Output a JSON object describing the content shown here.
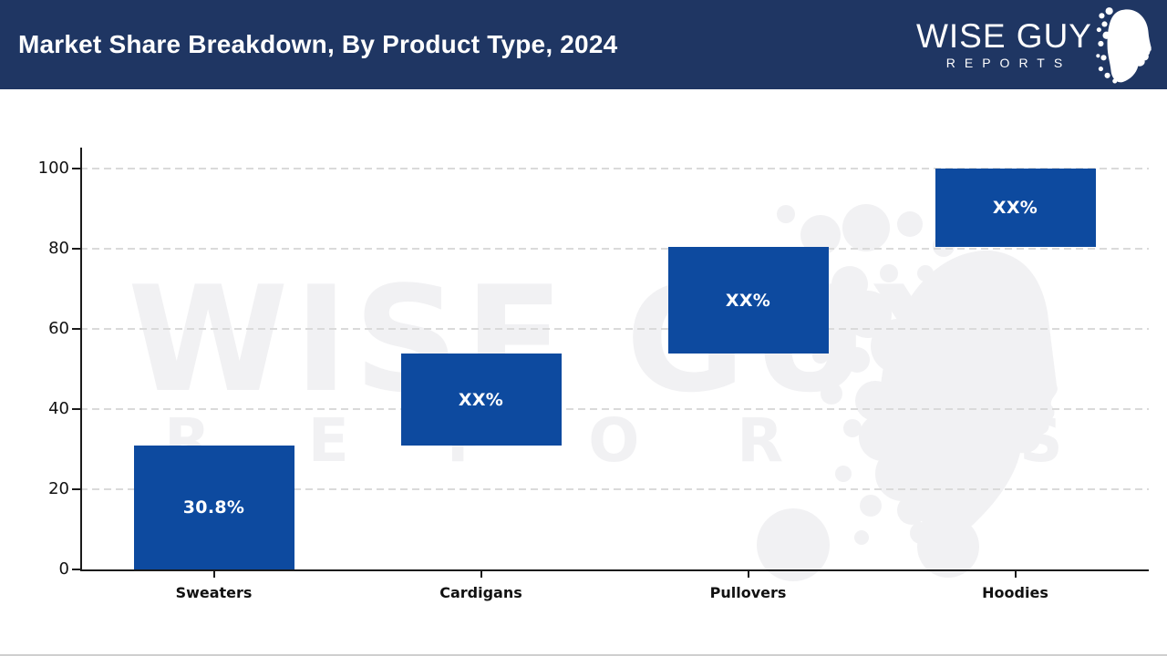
{
  "header": {
    "title": "Market Share Breakdown, By Product Type, 2024",
    "logo": {
      "line1": "WISE GUY",
      "line2": "REPORTS"
    }
  },
  "watermark": {
    "line1": "WISE GUY",
    "line2": "R E P O R T S"
  },
  "chart_data": {
    "type": "bar",
    "subtype": "waterfall",
    "title": "Market Share Breakdown, By Product Type, 2024",
    "categories": [
      "Sweaters",
      "Cardigans",
      "Pullovers",
      "Hoodies"
    ],
    "segments": [
      {
        "category": "Sweaters",
        "start": 0,
        "end": 30.8,
        "label": "30.8%"
      },
      {
        "category": "Cardigans",
        "start": 30.8,
        "end": 53.8,
        "label": "XX%"
      },
      {
        "category": "Pullovers",
        "start": 53.8,
        "end": 80.5,
        "label": "XX%"
      },
      {
        "category": "Hoodies",
        "start": 80.5,
        "end": 100,
        "label": "XX%"
      }
    ],
    "yticks": [
      0,
      20,
      40,
      60,
      80,
      100
    ],
    "ylim": [
      0,
      105
    ],
    "xlabel": "",
    "ylabel": "",
    "grid": "horizontal-dashed",
    "legend": "none"
  },
  "colors": {
    "header_bg": "#1f3663",
    "bar": "#0d4a9f",
    "bar_label": "#ffffff",
    "watermark": "#f1f1f3",
    "grid": "#dadada",
    "axis": "#1a1a1a",
    "text": "#111111"
  }
}
